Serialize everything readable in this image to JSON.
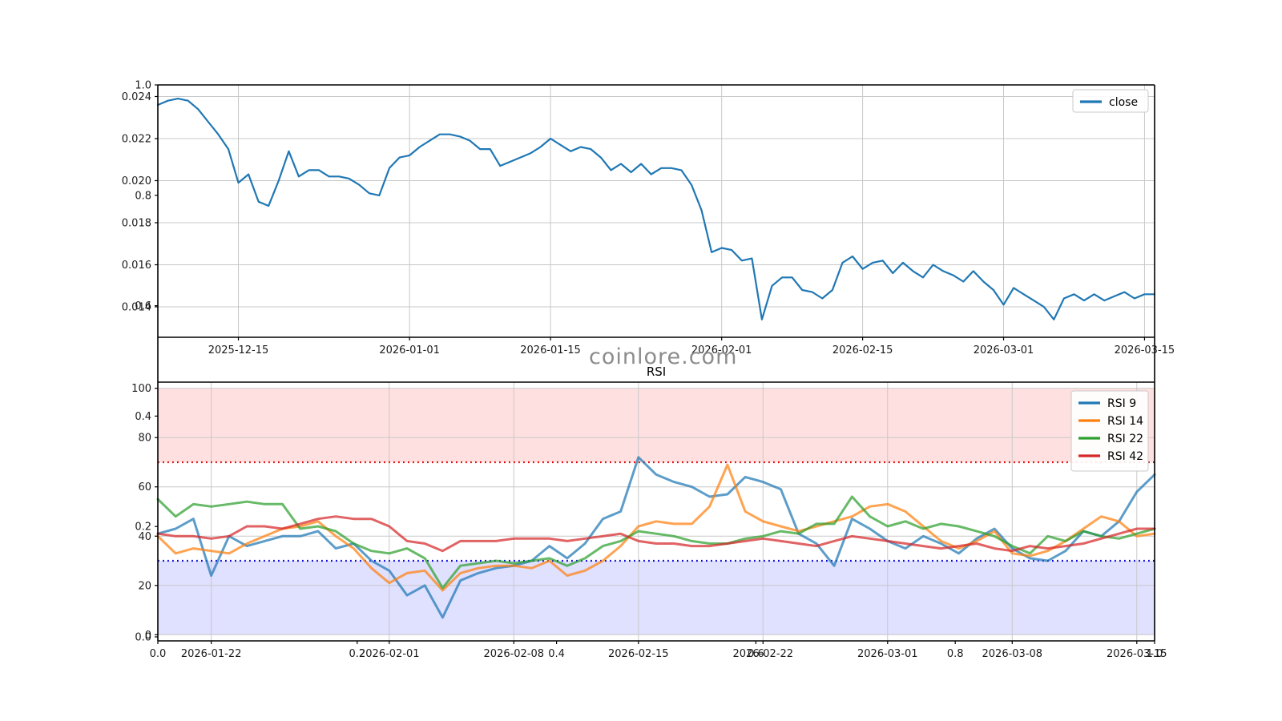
{
  "figure": {
    "watermark": "coinlore.com",
    "background": "#ffffff",
    "grid_color": "#c8c8c8",
    "spine_color": "#000000",
    "tick_label_color": "#1a1a1a"
  },
  "overlay_axis": {
    "y_labels": [
      "1.0",
      "0.8",
      "0.6",
      "0.4",
      "0.2",
      "0.0"
    ],
    "x_labels": [
      "0.0",
      "0.2",
      "0.4",
      "0.6",
      "0.8",
      "1.0"
    ]
  },
  "chart_data": [
    {
      "type": "line",
      "name": "price",
      "title": "",
      "legend_position": "upper right",
      "grid": true,
      "y_tick_labels": [
        "0.014",
        "0.016",
        "0.018",
        "0.020",
        "0.022",
        "0.024"
      ],
      "y_tick_values": [
        0.014,
        0.016,
        0.018,
        0.02,
        0.022,
        0.024
      ],
      "x_tick_labels": [
        "2025-12-15",
        "2026-01-01",
        "2026-01-15",
        "2026-02-01",
        "2026-02-15",
        "2026-03-01",
        "2026-03-15"
      ],
      "x_tick_days": [
        8,
        25,
        39,
        56,
        70,
        84,
        98
      ],
      "ylim": [
        0.01251,
        0.02455
      ],
      "series": [
        {
          "name": "close",
          "color": "#1f77b4",
          "opacity": 1.0,
          "width": 2.2,
          "values": [
            0.0236,
            0.0238,
            0.0239,
            0.0238,
            0.0234,
            0.0228,
            0.0222,
            0.0215,
            0.0199,
            0.0203,
            0.019,
            0.0188,
            0.02,
            0.0214,
            0.0202,
            0.0205,
            0.0205,
            0.0202,
            0.0202,
            0.0201,
            0.0198,
            0.0194,
            0.0193,
            0.0206,
            0.0211,
            0.0212,
            0.0216,
            0.0219,
            0.0222,
            0.0222,
            0.0221,
            0.0219,
            0.0215,
            0.0215,
            0.0207,
            0.0209,
            0.0211,
            0.0213,
            0.0216,
            0.022,
            0.0217,
            0.0214,
            0.0216,
            0.0215,
            0.0211,
            0.0205,
            0.0208,
            0.0204,
            0.0208,
            0.0203,
            0.0206,
            0.0206,
            0.0205,
            0.0198,
            0.0186,
            0.0166,
            0.0168,
            0.0167,
            0.0162,
            0.0163,
            0.0134,
            0.015,
            0.0154,
            0.0154,
            0.0148,
            0.0147,
            0.0144,
            0.0148,
            0.0161,
            0.0164,
            0.0158,
            0.0161,
            0.0162,
            0.0156,
            0.0161,
            0.0157,
            0.0154,
            0.016,
            0.0157,
            0.0155,
            0.0152,
            0.0157,
            0.0152,
            0.0148,
            0.0141,
            0.0149,
            0.0146,
            0.0143,
            0.014,
            0.0134,
            0.0144,
            0.0146,
            0.0143,
            0.0146,
            0.0143,
            0.0145,
            0.0147,
            0.0144,
            0.0146,
            0.0146
          ]
        }
      ]
    },
    {
      "type": "line",
      "name": "rsi",
      "title": "RSI",
      "legend_position": "upper right",
      "grid": true,
      "y_tick_labels": [
        "0",
        "20",
        "40",
        "60",
        "80",
        "100"
      ],
      "y_tick_values": [
        0,
        20,
        40,
        60,
        80,
        100
      ],
      "x_tick_labels": [
        "2026-01-22",
        "2026-02-01",
        "2026-02-08",
        "2026-02-15",
        "2026-02-22",
        "2026-03-01",
        "2026-03-08",
        "2026-03-15"
      ],
      "x_tick_days": [
        3,
        13,
        20,
        27,
        34,
        41,
        48,
        55
      ],
      "ylim": [
        -2.5,
        102.5
      ],
      "overbought": {
        "level": 70,
        "line_color": "#e00000",
        "fill_color": "rgba(255,0,0,0.12)"
      },
      "oversold": {
        "level": 30,
        "line_color": "#0000dd",
        "fill_color": "rgba(0,0,255,0.12)"
      },
      "series": [
        {
          "name": "RSI 9",
          "color": "#1f77b4",
          "opacity": 0.72,
          "width": 3,
          "values": [
            41,
            43,
            47,
            24,
            40,
            36,
            38,
            40,
            40,
            42,
            35,
            37,
            30,
            26,
            16,
            20,
            7,
            22,
            25,
            27,
            28,
            30,
            36,
            31,
            37,
            47,
            50,
            72,
            65,
            62,
            60,
            56,
            57,
            64,
            62,
            59,
            41,
            37,
            28,
            47,
            43,
            38,
            35,
            40,
            37,
            33,
            39,
            43,
            35,
            31,
            30,
            34,
            42,
            40,
            46,
            58,
            65
          ]
        },
        {
          "name": "RSI 14",
          "color": "#ff7f0e",
          "opacity": 0.72,
          "width": 3,
          "values": [
            40,
            33,
            35,
            34,
            33,
            37,
            40,
            43,
            44,
            46,
            40,
            35,
            27,
            21,
            25,
            26,
            18,
            25,
            27,
            28,
            28,
            27,
            30,
            24,
            26,
            30,
            36,
            44,
            46,
            45,
            45,
            52,
            69,
            50,
            46,
            44,
            42,
            44,
            46,
            48,
            52,
            53,
            50,
            44,
            38,
            35,
            38,
            42,
            33,
            32,
            34,
            38,
            43,
            48,
            46,
            40,
            41
          ]
        },
        {
          "name": "RSI 22",
          "color": "#2ca02c",
          "opacity": 0.72,
          "width": 3,
          "values": [
            55,
            48,
            53,
            52,
            53,
            54,
            53,
            53,
            43,
            44,
            42,
            37,
            34,
            33,
            35,
            31,
            19,
            28,
            29,
            30,
            29,
            30,
            31,
            28,
            31,
            36,
            38,
            42,
            41,
            40,
            38,
            37,
            37,
            39,
            40,
            42,
            41,
            45,
            45,
            56,
            48,
            44,
            46,
            43,
            45,
            44,
            42,
            40,
            36,
            33,
            40,
            38,
            42,
            40,
            39,
            41,
            43
          ]
        },
        {
          "name": "RSI 42",
          "color": "#d62728",
          "opacity": 0.72,
          "width": 3,
          "values": [
            41,
            40,
            40,
            39,
            40,
            44,
            44,
            43,
            45,
            47,
            48,
            47,
            47,
            44,
            38,
            37,
            34,
            38,
            38,
            38,
            39,
            39,
            39,
            38,
            39,
            40,
            41,
            38,
            37,
            37,
            36,
            36,
            37,
            38,
            39,
            38,
            37,
            36,
            38,
            40,
            39,
            38,
            37,
            36,
            35,
            36,
            37,
            35,
            34,
            36,
            35,
            36,
            37,
            39,
            41,
            43,
            43
          ]
        }
      ]
    }
  ]
}
